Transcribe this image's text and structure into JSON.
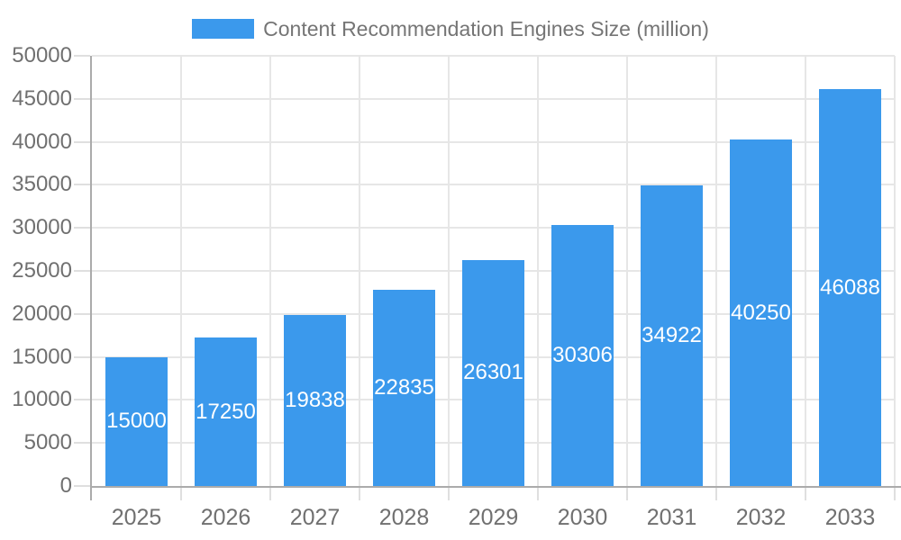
{
  "chart_data": {
    "type": "bar",
    "title": "Content Recommendation Engines Size (million)",
    "legend_entries": [
      "Content Recommendation Engines Size (million)"
    ],
    "legend_position": "top-center",
    "categories": [
      "2025",
      "2026",
      "2027",
      "2028",
      "2029",
      "2030",
      "2031",
      "2032",
      "2033"
    ],
    "values": [
      15000,
      17250,
      19838,
      22835,
      26301,
      30306,
      34922,
      40250,
      46088
    ],
    "bar_labels": [
      "15000",
      "17250",
      "19838",
      "22835",
      "26301",
      "30306",
      "34922",
      "40250",
      "46088"
    ],
    "bar_label_position": "inside-center",
    "xlabel": "",
    "ylabel": "",
    "ylim": [
      0,
      50000
    ],
    "ytick_step": 5000,
    "ytick_labels": [
      "0",
      "5000",
      "10000",
      "15000",
      "20000",
      "25000",
      "30000",
      "35000",
      "40000",
      "45000",
      "50000"
    ],
    "grid": true,
    "colors": {
      "bar": "#3B99EC",
      "bar_label_text": "#FFFFFF",
      "axis_line": "#ABABAB",
      "gridline": "#E6E6E6",
      "tick": "#DFDFDF",
      "axis_text": "#707070",
      "title_text": "#757575",
      "background": "#FFFFFF"
    }
  }
}
